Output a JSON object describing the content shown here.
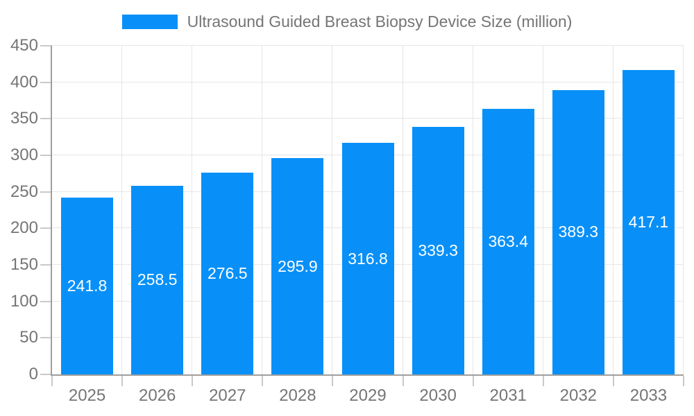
{
  "legend": {
    "label": "Ultrasound Guided Breast Biopsy Device Size (million)"
  },
  "chart_data": {
    "type": "bar",
    "title": "Ultrasound Guided Breast Biopsy Device Size (million)",
    "categories": [
      "2025",
      "2026",
      "2027",
      "2028",
      "2029",
      "2030",
      "2031",
      "2032",
      "2033"
    ],
    "values": [
      241.8,
      258.5,
      276.5,
      295.9,
      316.8,
      339.3,
      363.4,
      389.3,
      417.1
    ],
    "series_name": "Ultrasound Guided Breast Biopsy Device Size (million)",
    "xlabel": "",
    "ylabel": "",
    "ylim": [
      0,
      450
    ],
    "ytick_step": 50,
    "yticks": [
      0,
      50,
      100,
      150,
      200,
      250,
      300,
      350,
      400,
      450
    ],
    "grid": true,
    "legend_position": "top",
    "value_labels_position": "inside-center"
  },
  "colors": {
    "bar": "#0890F8",
    "axis_line": "#9E9E9E",
    "gridline": "#E6E6E6",
    "tick": "#C9C9C9",
    "axis_text": "#757575",
    "value_label_text": "#FFFFFF",
    "background": "#FFFFFF"
  }
}
